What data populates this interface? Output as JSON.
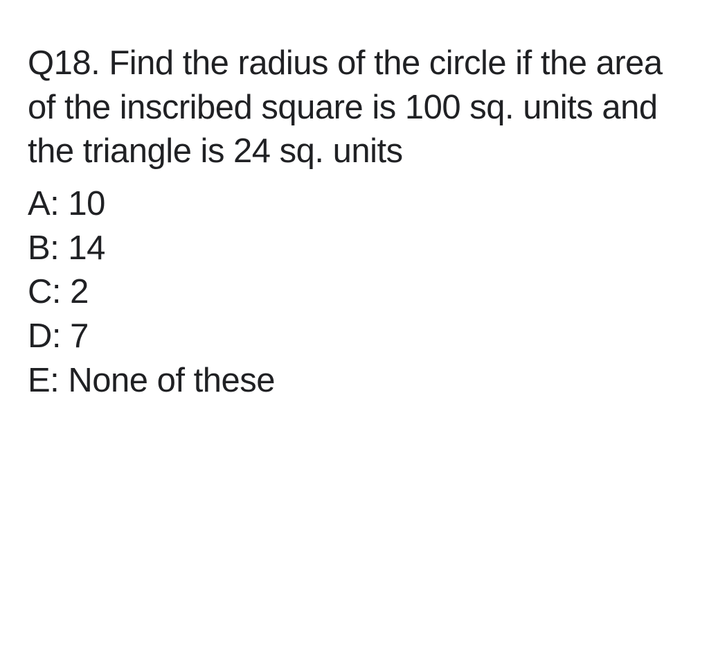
{
  "question": {
    "number": "Q18.",
    "text": "Find the radius of the circle if the area of the inscribed square is 100 sq. units and the triangle is 24 sq. units",
    "fontsize": 49,
    "color": "#202124",
    "background_color": "#ffffff"
  },
  "options": [
    {
      "label": "A:",
      "value": "10"
    },
    {
      "label": "B:",
      "value": "14"
    },
    {
      "label": "C:",
      "value": "2"
    },
    {
      "label": "D:",
      "value": "7"
    },
    {
      "label": "E:",
      "value": "None of these"
    }
  ]
}
